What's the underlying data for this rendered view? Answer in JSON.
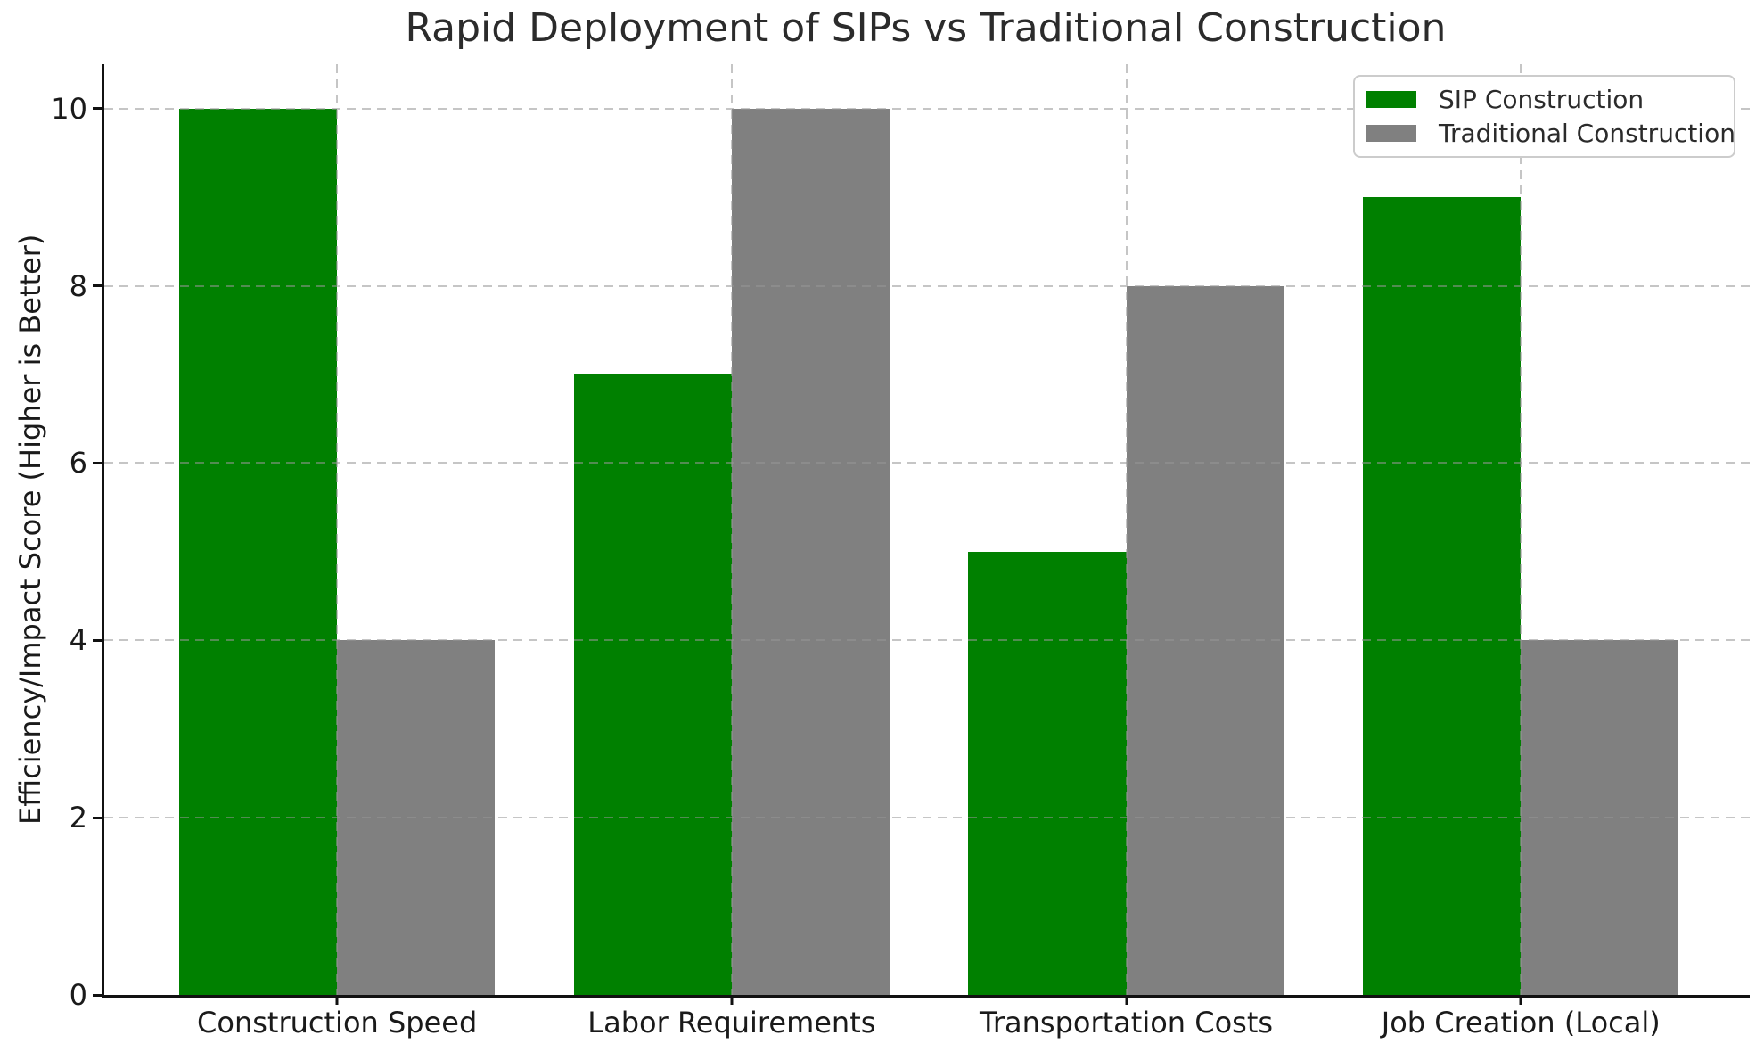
{
  "chart_data": {
    "type": "bar",
    "title": "Rapid Deployment of SIPs vs Traditional Construction",
    "xlabel": "",
    "ylabel": "Efficiency/Impact Score (Higher is Better)",
    "categories": [
      "Construction Speed",
      "Labor Requirements",
      "Transportation Costs",
      "Job Creation (Local)"
    ],
    "series": [
      {
        "name": "SIP Construction",
        "color": "#008000",
        "values": [
          10,
          7,
          5,
          9
        ]
      },
      {
        "name": "Traditional Construction",
        "color": "#808080",
        "values": [
          4,
          10,
          8,
          4
        ]
      }
    ],
    "ylim": [
      0,
      10.5
    ],
    "xlim": [
      -0.59,
      3.58
    ],
    "yticks": [
      0,
      2,
      4,
      6,
      8,
      10
    ],
    "bar_width_units": 0.4,
    "grid": "dashed gridlines on both axes, drawn above bars",
    "legend_position": "upper right",
    "colors": {
      "sip": "#008000",
      "traditional": "#808080",
      "spine": "#111111",
      "grid": "#cccccc",
      "text": "#1a1a1a"
    }
  }
}
